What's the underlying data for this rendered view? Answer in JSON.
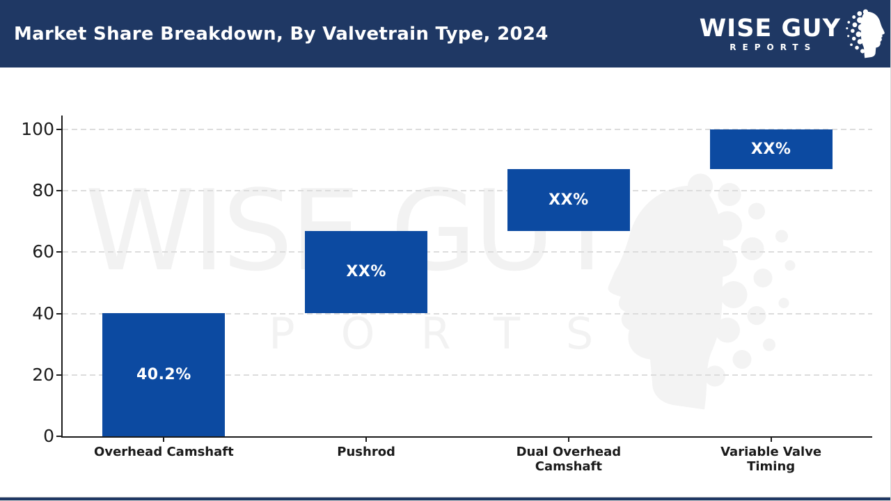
{
  "header": {
    "title": "Market Share Breakdown, By Valvetrain Type, 2024",
    "logo": {
      "line1": "WISE GUY",
      "line2": "REPORTS"
    }
  },
  "watermark": {
    "line1": "WISE GUY",
    "line2": "REPORTS"
  },
  "colors": {
    "header_bg": "#1f3864",
    "bar": "#0c4aa1",
    "grid": "#dcdcdc",
    "axis": "#1a1a1a",
    "bar_label": "#ffffff",
    "watermark": "#f2f2f2"
  },
  "chart_data": {
    "type": "bar",
    "subtype": "waterfall",
    "title": "Market Share Breakdown, By Valvetrain Type, 2024",
    "xlabel": "",
    "ylabel": "",
    "categories": [
      "Overhead Camshaft",
      "Pushrod",
      "Dual Overhead\nCamshaft",
      "Variable Valve\nTiming"
    ],
    "bars": [
      {
        "category": "Overhead Camshaft",
        "start": 0,
        "end": 40.2,
        "label": "40.2%"
      },
      {
        "category": "Pushrod",
        "start": 40.2,
        "end": 67,
        "label": "XX%"
      },
      {
        "category": "Dual Overhead Camshaft",
        "start": 67,
        "end": 87,
        "label": "XX%"
      },
      {
        "category": "Variable Valve Timing",
        "start": 87,
        "end": 100,
        "label": "XX%"
      }
    ],
    "values": [
      40.2,
      26.8,
      20,
      13
    ],
    "labels": [
      "40.2%",
      "XX%",
      "XX%",
      "XX%"
    ],
    "yticks": [
      0,
      20,
      40,
      60,
      80,
      100
    ],
    "ylim": [
      0,
      105
    ],
    "grid": true,
    "grid_style": "dashed-horizontal",
    "legend": false
  }
}
